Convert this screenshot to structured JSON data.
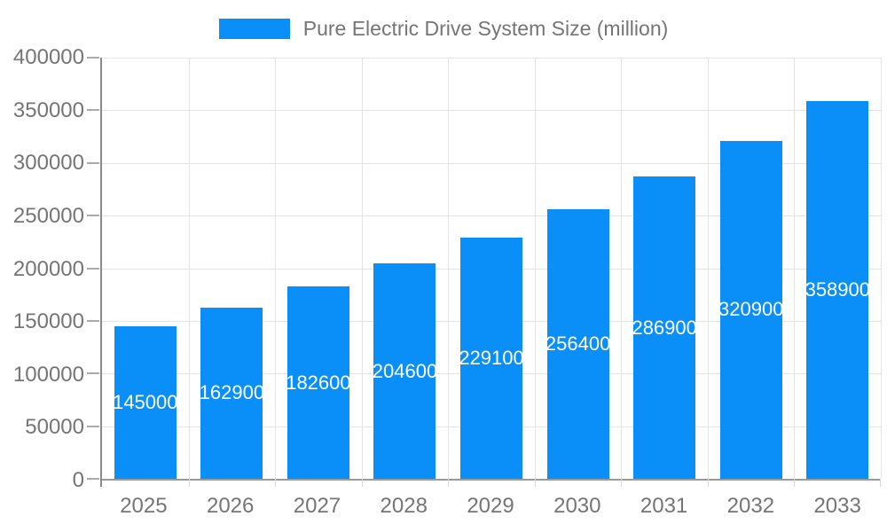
{
  "legend": {
    "label": "Pure Electric Drive System Size (million)",
    "swatch_color": "#0a8ff9",
    "position": "top-center"
  },
  "chart_data": {
    "type": "bar",
    "title": "",
    "xlabel": "",
    "ylabel": "",
    "categories": [
      "2025",
      "2026",
      "2027",
      "2028",
      "2029",
      "2030",
      "2031",
      "2032",
      "2033"
    ],
    "series": [
      {
        "name": "Pure Electric Drive System Size (million)",
        "values": [
          145000,
          162900,
          182600,
          204600,
          229100,
          256400,
          286900,
          320900,
          358900
        ]
      }
    ],
    "values": [
      145000,
      162900,
      182600,
      204600,
      229100,
      256400,
      286900,
      320900,
      358900
    ],
    "value_labels": [
      "145000",
      "162900",
      "182600",
      "204600",
      "229100",
      "256400",
      "286900",
      "320900",
      "358900"
    ],
    "ylim": [
      0,
      400000
    ],
    "ytick_interval": 50000,
    "ytick_labels_top_down": [
      "400000",
      "350000",
      "300000",
      "250000",
      "200000",
      "150000",
      "100000",
      "50000",
      "0"
    ],
    "grid": "horizontal-and-vertical",
    "legend_position": "top",
    "colors": {
      "bar": "#0a8ff9",
      "bar_value_label": "#ffffff",
      "axis_text": "#757575",
      "gridline": "#e3e3e3",
      "axis_line": "#9a9a9a"
    }
  }
}
